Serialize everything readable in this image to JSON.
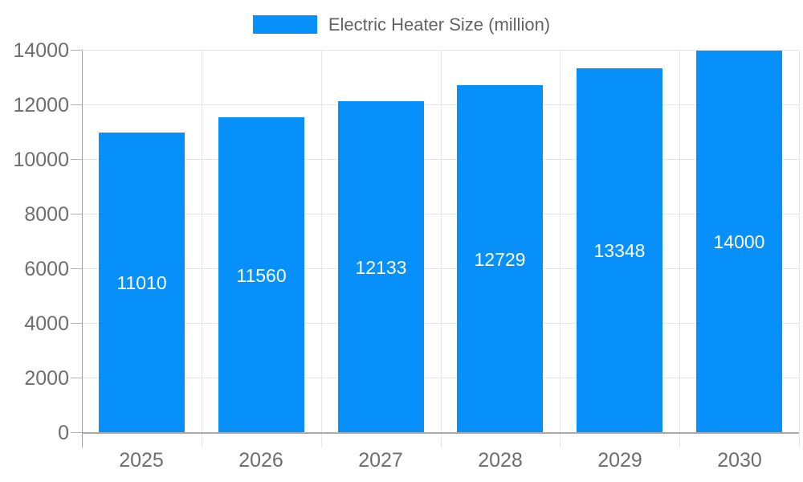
{
  "chart_data": {
    "type": "bar",
    "title": "Electric Heater Size (million)",
    "legend_label": "Electric Heater Size (million)",
    "legend_position": "top",
    "categories": [
      "2025",
      "2026",
      "2027",
      "2028",
      "2029",
      "2030"
    ],
    "series": [
      {
        "name": "Electric Heater Size (million)",
        "values": [
          11010,
          11560,
          12133,
          12729,
          13348,
          14000
        ]
      }
    ],
    "values": [
      11010,
      11560,
      12133,
      12729,
      13348,
      14000
    ],
    "bar_value_labels": [
      "11010",
      "11560",
      "12133",
      "12729",
      "13348",
      "14000"
    ],
    "xlabel": "",
    "ylabel": "",
    "ylim": [
      0,
      14000
    ],
    "yticks": [
      0,
      2000,
      4000,
      6000,
      8000,
      10000,
      12000,
      14000
    ],
    "grid": true,
    "colors": {
      "bar": "#0790f9",
      "bar_value_text": "#ffffff",
      "axis_text": "#6e6e6e",
      "legend_text": "#636363",
      "gridline": "#e6e6e6",
      "baseline": "#aaaaaa",
      "axis_line": "#a3a3a3",
      "tick_mark": "#b3b3b3",
      "background": "#ffffff"
    }
  }
}
